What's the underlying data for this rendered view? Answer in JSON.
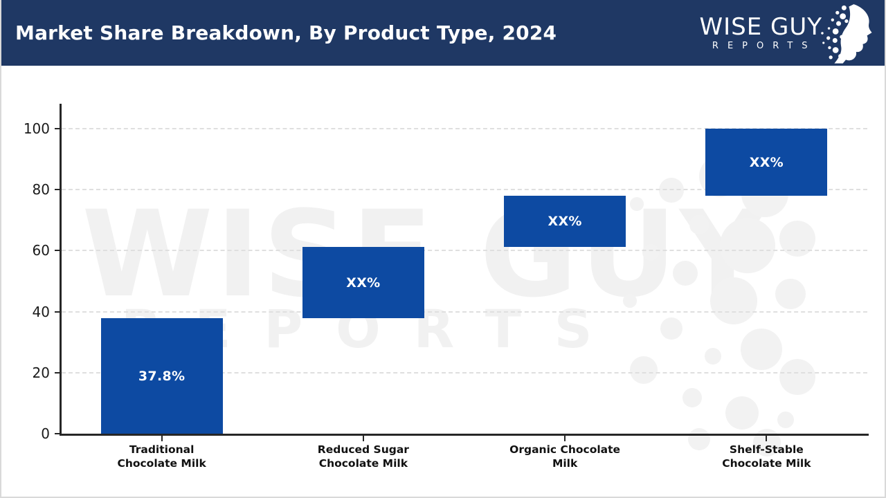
{
  "header": {
    "title": "Market Share Breakdown, By Product Type, 2024",
    "logo": {
      "line1": "WISE GUY",
      "line2": "REPORTS"
    }
  },
  "watermark": {
    "line1": "WISE GUY",
    "line2": "REPORTS"
  },
  "colors": {
    "header_bg": "#1f3864",
    "bar": "#0d4aa2",
    "axis": "#262626",
    "gridline": "#dfdfdf",
    "watermark": "#f1f1f1",
    "tick_label": "#1a1a1a",
    "value_label": "#ffffff"
  },
  "chart_data": {
    "type": "bar",
    "variant": "waterfall",
    "title": "Market Share Breakdown, By Product Type, 2024",
    "categories": [
      "Traditional Chocolate Milk",
      "Reduced Sugar Chocolate Milk",
      "Organic Chocolate Milk",
      "Shelf-Stable Chocolate Milk"
    ],
    "category_lines": [
      [
        "Traditional",
        "Chocolate Milk"
      ],
      [
        "Reduced Sugar",
        "Chocolate Milk"
      ],
      [
        "Organic Chocolate",
        "Milk"
      ],
      [
        "Shelf-Stable",
        "Chocolate Milk"
      ]
    ],
    "segments": [
      {
        "category": "Traditional Chocolate Milk",
        "start": 0,
        "end": 37.8,
        "label": "37.8%"
      },
      {
        "category": "Reduced Sugar Chocolate Milk",
        "start": 37.8,
        "end": 61.2,
        "label": "XX%"
      },
      {
        "category": "Organic Chocolate Milk",
        "start": 61.2,
        "end": 78.0,
        "label": "XX%"
      },
      {
        "category": "Shelf-Stable Chocolate Milk",
        "start": 78.0,
        "end": 100.0,
        "label": "XX%"
      }
    ],
    "ylim": [
      0,
      100
    ],
    "yticks": [
      0,
      20,
      40,
      60,
      80,
      100
    ],
    "grid": "horizontal-dashed",
    "legend": null,
    "bar_color": "#0d4aa2"
  }
}
